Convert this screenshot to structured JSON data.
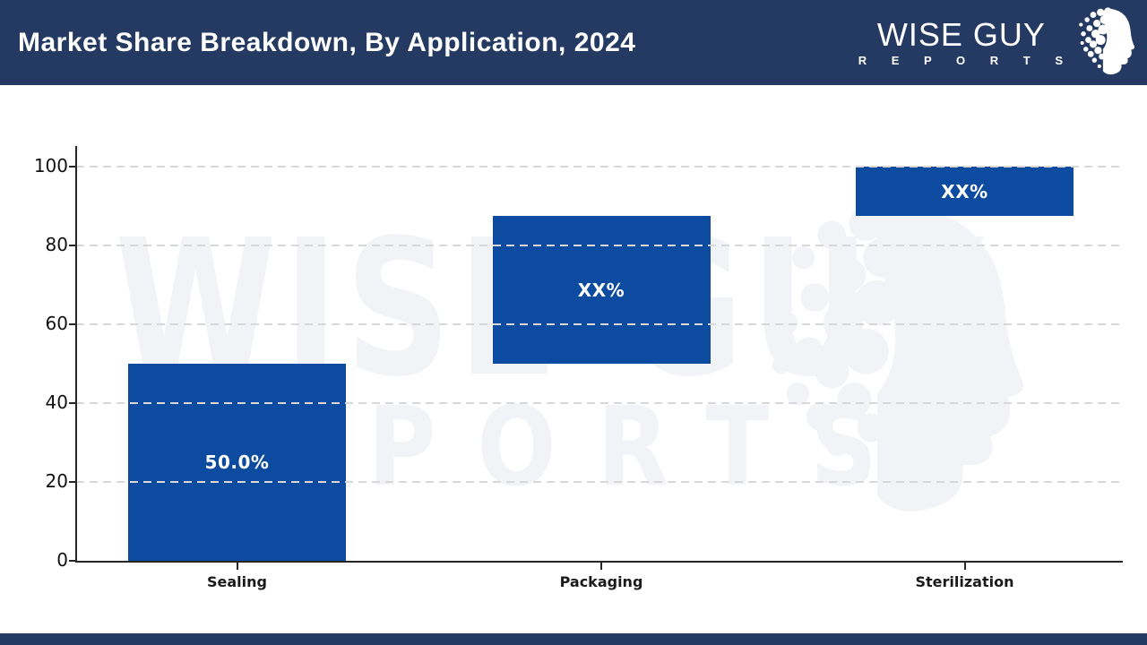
{
  "header": {
    "title": "Market Share Breakdown, By Application, 2024",
    "logo": {
      "line1": "WISE GUY",
      "line2": "R E P O R T S"
    }
  },
  "watermark": {
    "line1": "WISE GUY",
    "line2": "REPORTS"
  },
  "colors": {
    "header_bg": "#243A62",
    "footer_bg": "#243A62",
    "bar_blue": "#0D4BA0",
    "gridline": "#D8D8D8",
    "axis": "#262626",
    "tick_text": "#111111",
    "watermark": "#F2F3F6",
    "title_text": "#FFFFFF",
    "bar_label_text": "#FFFFFF"
  },
  "chart_data": {
    "type": "bar",
    "subtype": "floating-segment-waterfall",
    "title": "Market Share Breakdown, By Application, 2024",
    "categories": [
      "Sealing",
      "Packaging",
      "Sterilization"
    ],
    "bars": [
      {
        "category": "Sealing",
        "start": 0,
        "end": 50,
        "label": "50.0%",
        "implied_share_pct": 50.0
      },
      {
        "category": "Packaging",
        "start": 50,
        "end": 87.5,
        "label": "XX%",
        "implied_share_pct": 37.5
      },
      {
        "category": "Sterilization",
        "start": 87.5,
        "end": 100,
        "label": "XX%",
        "implied_share_pct": 12.5
      }
    ],
    "xlabel": "",
    "ylabel": "",
    "ylim": [
      0,
      105
    ],
    "yticks": [
      0,
      20,
      40,
      60,
      80,
      100
    ],
    "grid": "horizontal-dashed-over-bars",
    "legend": "none",
    "bar_color": "#0D4BA0",
    "bar_label_color": "#FFFFFF"
  }
}
